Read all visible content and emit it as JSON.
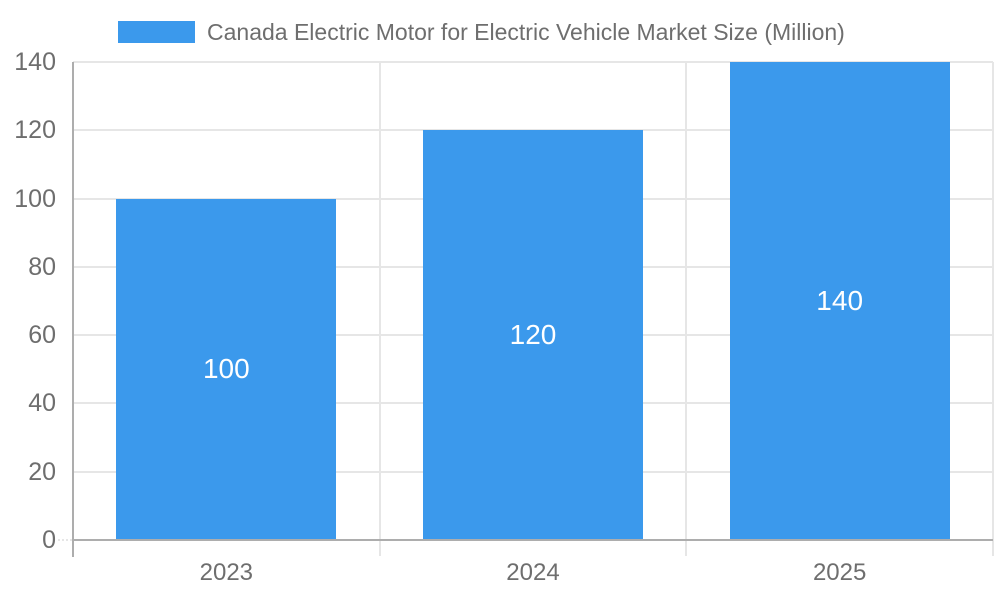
{
  "legend": {
    "label": "Canada Electric Motor for Electric Vehicle Market Size (Million)"
  },
  "chart_data": {
    "type": "bar",
    "title": "Canada Electric Motor for Electric Vehicle Market Size (Million)",
    "categories": [
      "2023",
      "2024",
      "2025"
    ],
    "values": [
      100,
      120,
      140
    ],
    "data_labels": [
      "100",
      "120",
      "140"
    ],
    "yticks": [
      0,
      20,
      40,
      60,
      80,
      100,
      120,
      140
    ],
    "ylim": [
      0,
      140
    ],
    "xlabel": "",
    "ylabel": "",
    "grid": true,
    "legend_position": "top",
    "colors": {
      "bar": "#3B99EC",
      "data_label": "#FFFFFF",
      "legend_text": "#6E6E6E",
      "axis_text": "#6E6E6E",
      "grid_line": "#E6E6E6",
      "axis_line": "#ADADAD",
      "background": "#FFFFFF"
    }
  }
}
